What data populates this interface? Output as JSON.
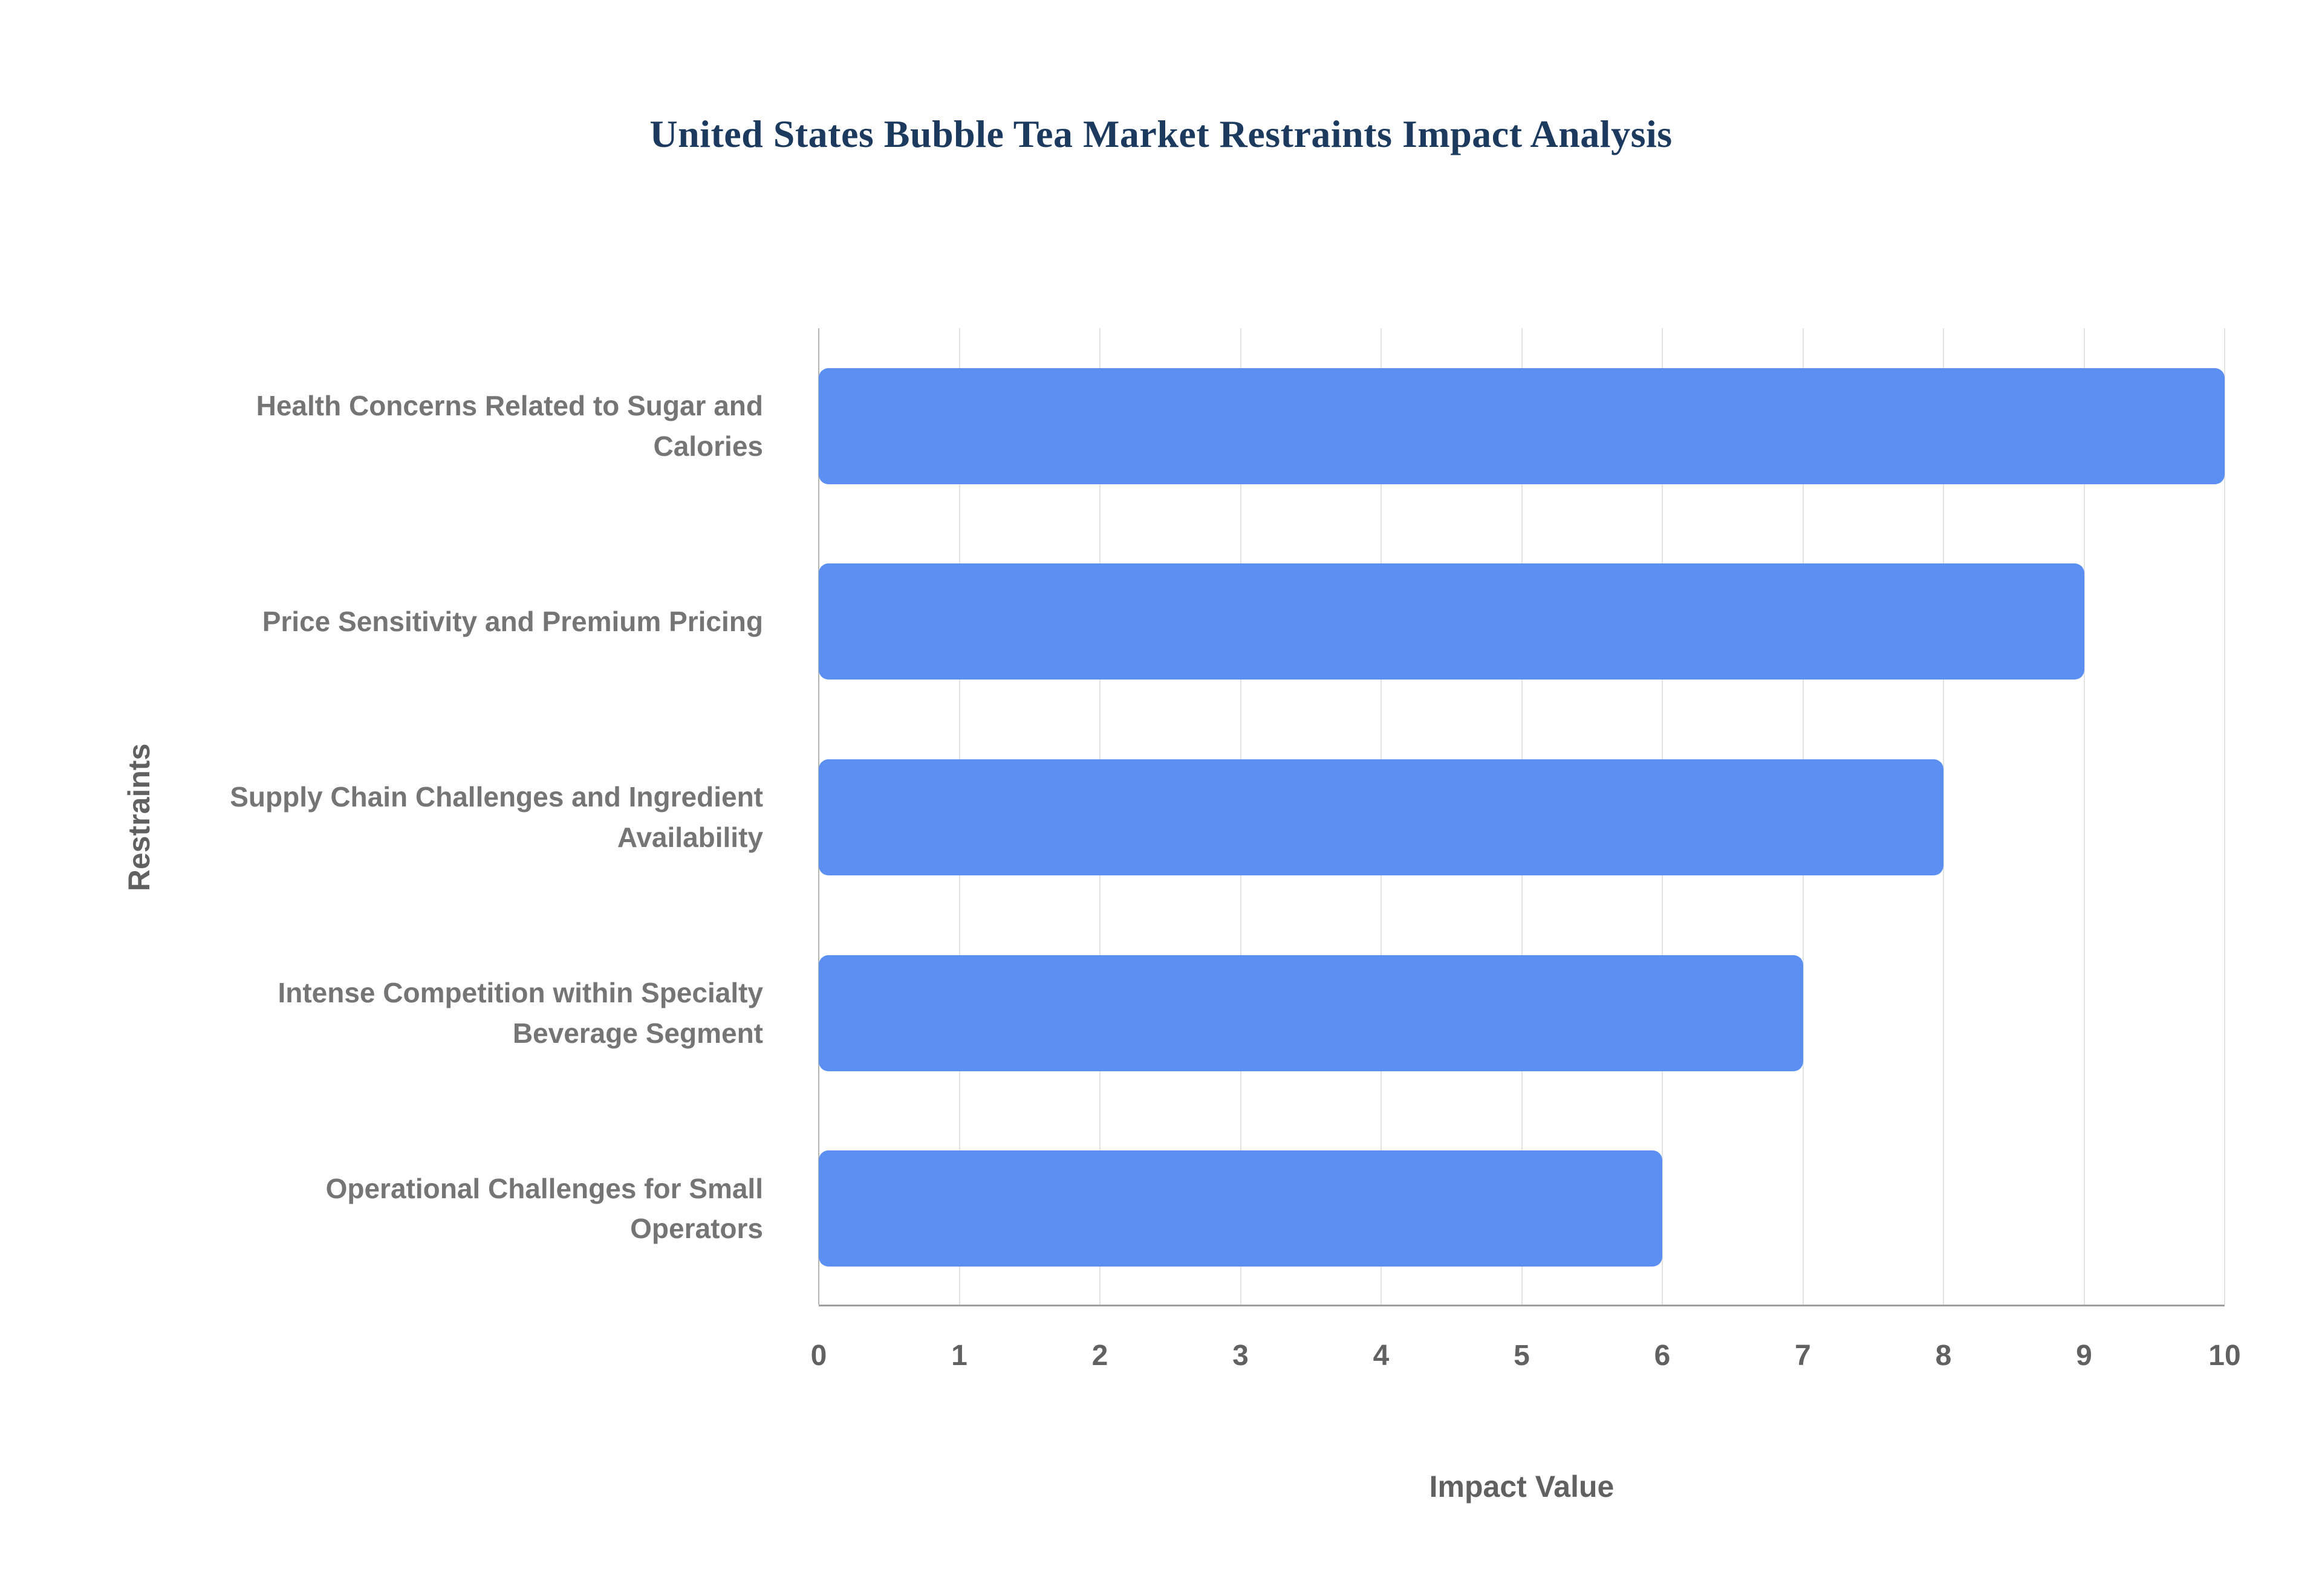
{
  "title": "United States Bubble Tea Market Restraints Impact Analysis",
  "chart_data": {
    "type": "bar",
    "orientation": "horizontal",
    "title": "United States Bubble Tea Market Restraints Impact Analysis",
    "xlabel": "Impact Value",
    "ylabel": "Restraints",
    "categories": [
      "Health Concerns Related to Sugar and Calories",
      "Price Sensitivity and Premium Pricing",
      "Supply Chain Challenges and Ingredient Availability",
      "Intense Competition within Specialty Beverage Segment",
      "Operational Challenges for Small Operators"
    ],
    "values": [
      10,
      9,
      8,
      7,
      6
    ],
    "xlim": [
      0,
      10
    ],
    "xticks": [
      0,
      1,
      2,
      3,
      4,
      5,
      6,
      7,
      8,
      9,
      10
    ],
    "grid": true,
    "legend": false,
    "bar_color": "#5b8ff2",
    "background_color": "#ffffff"
  }
}
